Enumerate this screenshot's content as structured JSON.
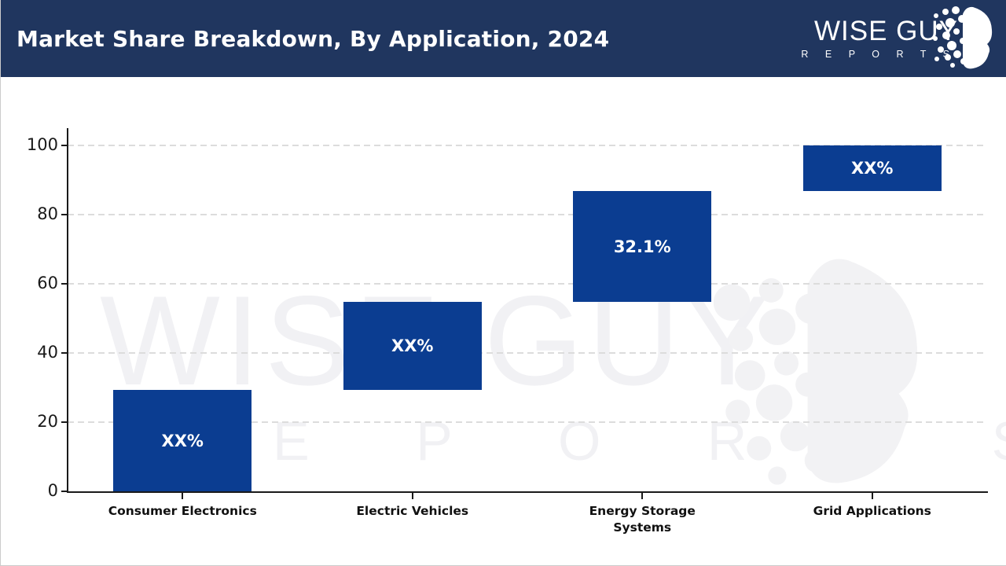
{
  "header": {
    "title": "Market Share Breakdown, By Application, 2024",
    "bg_color": "#20365f",
    "logo": {
      "line1": "WISE GUY",
      "line2": "REPORTS"
    }
  },
  "watermark": {
    "line1": "WISE GUY",
    "line2": "REPORTS",
    "color": "#f1f1f4"
  },
  "chart_data": {
    "type": "bar",
    "subtype": "waterfall",
    "title": "Market Share Breakdown, By Application, 2024",
    "categories": [
      "Consumer Electronics",
      "Electric Vehicles",
      "Energy Storage Systems",
      "Grid Applications"
    ],
    "segments": [
      {
        "category": "Consumer Electronics",
        "start": 0,
        "end": 29.3,
        "value_label": "XX%"
      },
      {
        "category": "Electric Vehicles",
        "start": 29.3,
        "end": 54.7,
        "value_label": "XX%"
      },
      {
        "category": "Energy Storage Systems",
        "start": 54.7,
        "end": 86.8,
        "value_label": "32.1%"
      },
      {
        "category": "Grid Applications",
        "start": 86.8,
        "end": 100,
        "value_label": "XX%"
      }
    ],
    "yticks": [
      0,
      20,
      40,
      60,
      80,
      100
    ],
    "ylim": [
      0,
      100
    ],
    "xlabel": "",
    "ylabel": "",
    "grid": "horizontal-dashed",
    "legend": "none",
    "bar_color": "#0b3d91",
    "bar_label_color": "#ffffff",
    "grid_color": "#dcdcdc",
    "axis_color": "#1a1a1a"
  }
}
